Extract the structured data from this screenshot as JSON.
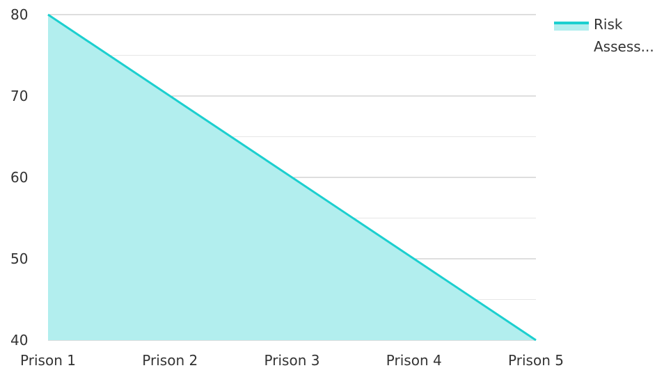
{
  "chart_data": {
    "type": "area",
    "categories": [
      "Prison 1",
      "Prison 2",
      "Prison 3",
      "Prison 4",
      "Prison 5"
    ],
    "series": [
      {
        "name": "Risk Assess...",
        "values": [
          80,
          70,
          60,
          50,
          40
        ]
      }
    ],
    "ylim": [
      40,
      80
    ],
    "yticks": [
      "40",
      "50",
      "60",
      "70",
      "80"
    ],
    "grid": true,
    "legend_position": "top-right",
    "legend_lines": [
      "Risk",
      "Assess..."
    ],
    "colors": {
      "line": "#1ccfcf",
      "fill": "#b2eeee",
      "grid_major": "#bdbdbd",
      "grid_minor": "#e6e6e6"
    }
  }
}
